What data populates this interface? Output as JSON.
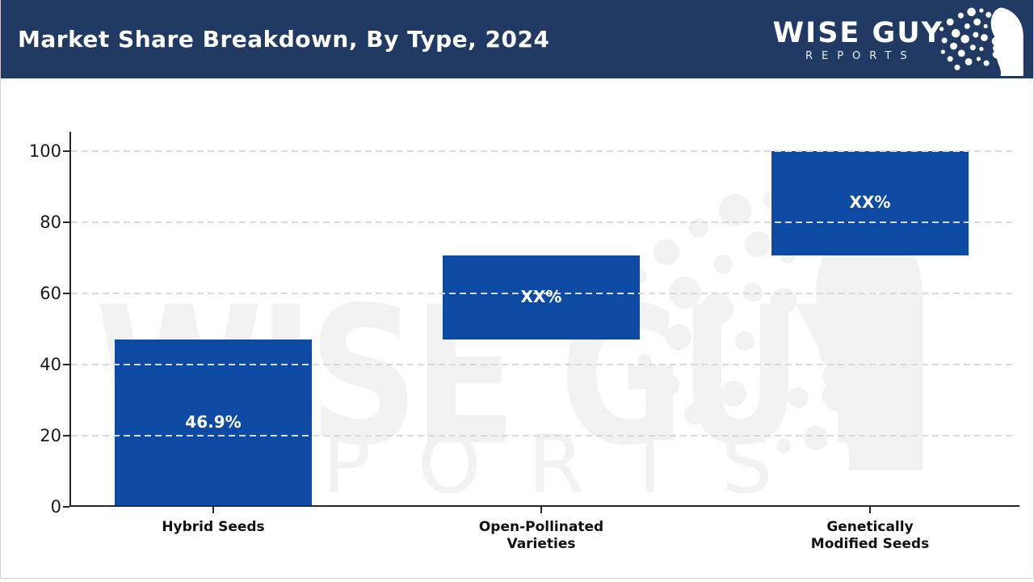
{
  "header": {
    "title": "Market Share Breakdown, By Type, 2024",
    "logo": {
      "line1": "WISE GUY",
      "line2": "REPORTS"
    }
  },
  "watermark": {
    "line1": "WISE GUY",
    "line2": "REPORTS"
  },
  "colors": {
    "header_bg": "#203A64",
    "header_text": "#FFFFFF",
    "bar": "#0D4AA3",
    "bar_label": "#FFFFFF",
    "grid": "#D9D9D9",
    "axis": "#262626",
    "tick_label": "#1A1A1A",
    "watermark": "#F2F2F2"
  },
  "chart_data": {
    "type": "bar",
    "subtype": "waterfall",
    "title": "Market Share Breakdown, By Type, 2024",
    "categories": [
      [
        "Hybrid Seeds"
      ],
      [
        "Open-Pollinated",
        "Varieties"
      ],
      [
        "Genetically",
        "Modified Seeds"
      ]
    ],
    "segments": [
      {
        "category": "Hybrid Seeds",
        "start": 0,
        "end": 46.9,
        "label": "46.9%"
      },
      {
        "category": "Open-Pollinated Varieties",
        "start": 46.9,
        "end": 70.6,
        "label": "XX%"
      },
      {
        "category": "Genetically Modified Seeds",
        "start": 70.6,
        "end": 100,
        "label": "XX%"
      }
    ],
    "xlabel": "",
    "ylabel": "",
    "ylim": [
      0,
      105
    ],
    "yticks": [
      0,
      20,
      40,
      60,
      80,
      100
    ],
    "grid": "horizontal-dashed",
    "legend": "none"
  }
}
